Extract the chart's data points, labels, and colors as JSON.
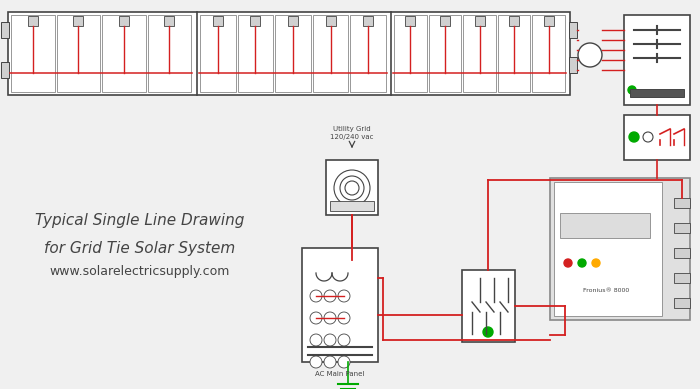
{
  "title_line1": "Typical Single Line Drawing",
  "title_line2": "for Grid Tie Solar System",
  "title_line3": "www.solarelectricsupply.com",
  "bg_color": "#f0f0f0",
  "red": "#d42020",
  "dark": "#444444",
  "green": "#00aa00",
  "gray": "#888888",
  "light_gray": "#cccccc",
  "panel_bg": "#d0d0d0",
  "white": "#ffffff",
  "inv_bg": "#e0e0e0"
}
